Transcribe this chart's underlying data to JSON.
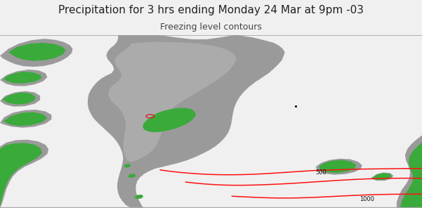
{
  "title": "Precipitation for 3 hrs ending Monday 24 Mar at 9pm -03",
  "subtitle": "Freezing level contours",
  "title_fontsize": 11,
  "subtitle_fontsize": 9,
  "title_color": "#222222",
  "subtitle_color": "#444444",
  "header_bg": "#f0f0f0",
  "fig_width": 6.01,
  "fig_height": 2.96,
  "dpi": 100,
  "map_bg": "#c8d4ea",
  "land_gray": "#9a9a9a",
  "land_green": "#3aaa3a",
  "contour_color": "#ff1111"
}
